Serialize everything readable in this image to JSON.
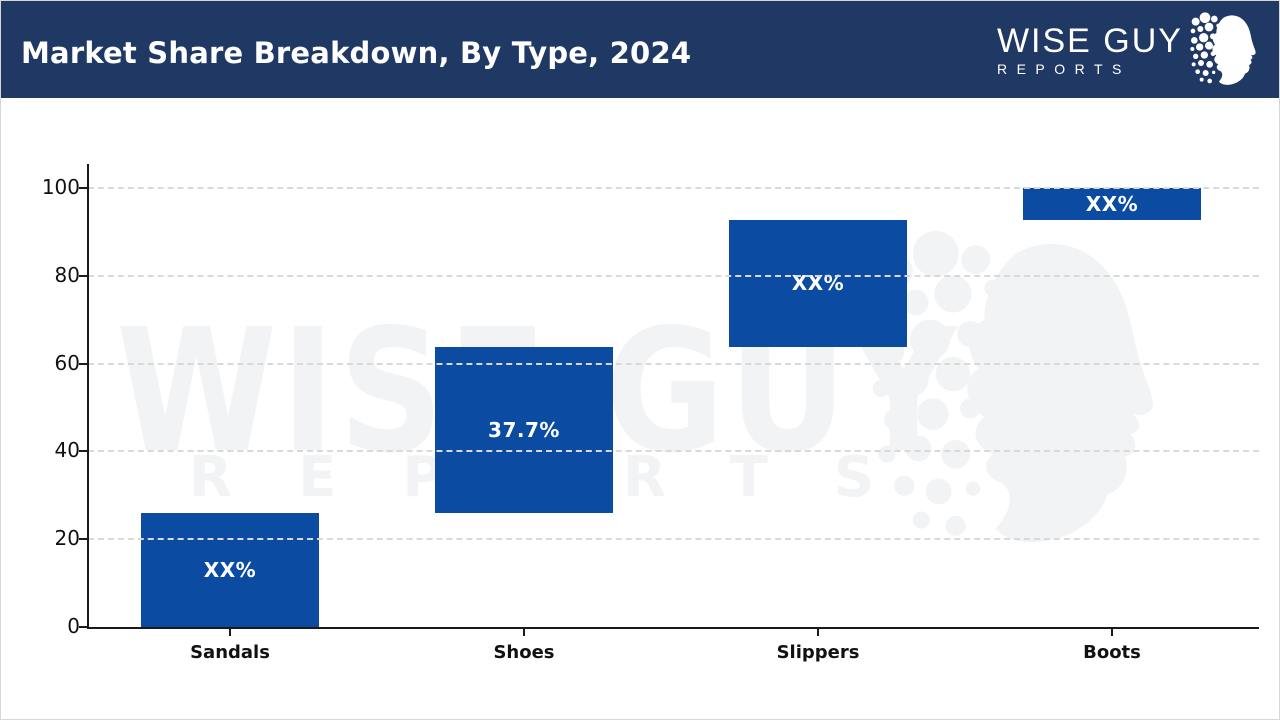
{
  "page": {
    "background": "#ffffff",
    "border_color": "#d7d7d7"
  },
  "header": {
    "title": "Market Share Breakdown, By Type, 2024",
    "background": "#1f3864",
    "logo": {
      "brand": "WISE GUY",
      "sub": "REPORTS"
    }
  },
  "watermark": {
    "brand": "WISE GUY",
    "sub": "REPORTS"
  },
  "chart_data": {
    "type": "bar",
    "subtype": "floating-waterfall",
    "title": "Market Share Breakdown, By Type, 2024",
    "xlabel": "",
    "ylabel": "",
    "categories": [
      "Sandals",
      "Shoes",
      "Slippers",
      "Boots"
    ],
    "segments": [
      {
        "category": "Sandals",
        "start": 0,
        "end": 26,
        "label": "XX%"
      },
      {
        "category": "Shoes",
        "start": 26,
        "end": 63.7,
        "label": "37.7%"
      },
      {
        "category": "Slippers",
        "start": 63.7,
        "end": 92.8,
        "label": "XX%"
      },
      {
        "category": "Boots",
        "start": 92.8,
        "end": 100,
        "label": "XX%"
      }
    ],
    "yticks": [
      0,
      20,
      40,
      60,
      80,
      100
    ],
    "ylim": [
      0,
      105.5
    ],
    "grid": "horizontal-dashed",
    "legend": "none",
    "bar_color": "#0b4ba1",
    "bar_label_color": "#ffffff",
    "watermark_color": "#f2f3f5"
  }
}
